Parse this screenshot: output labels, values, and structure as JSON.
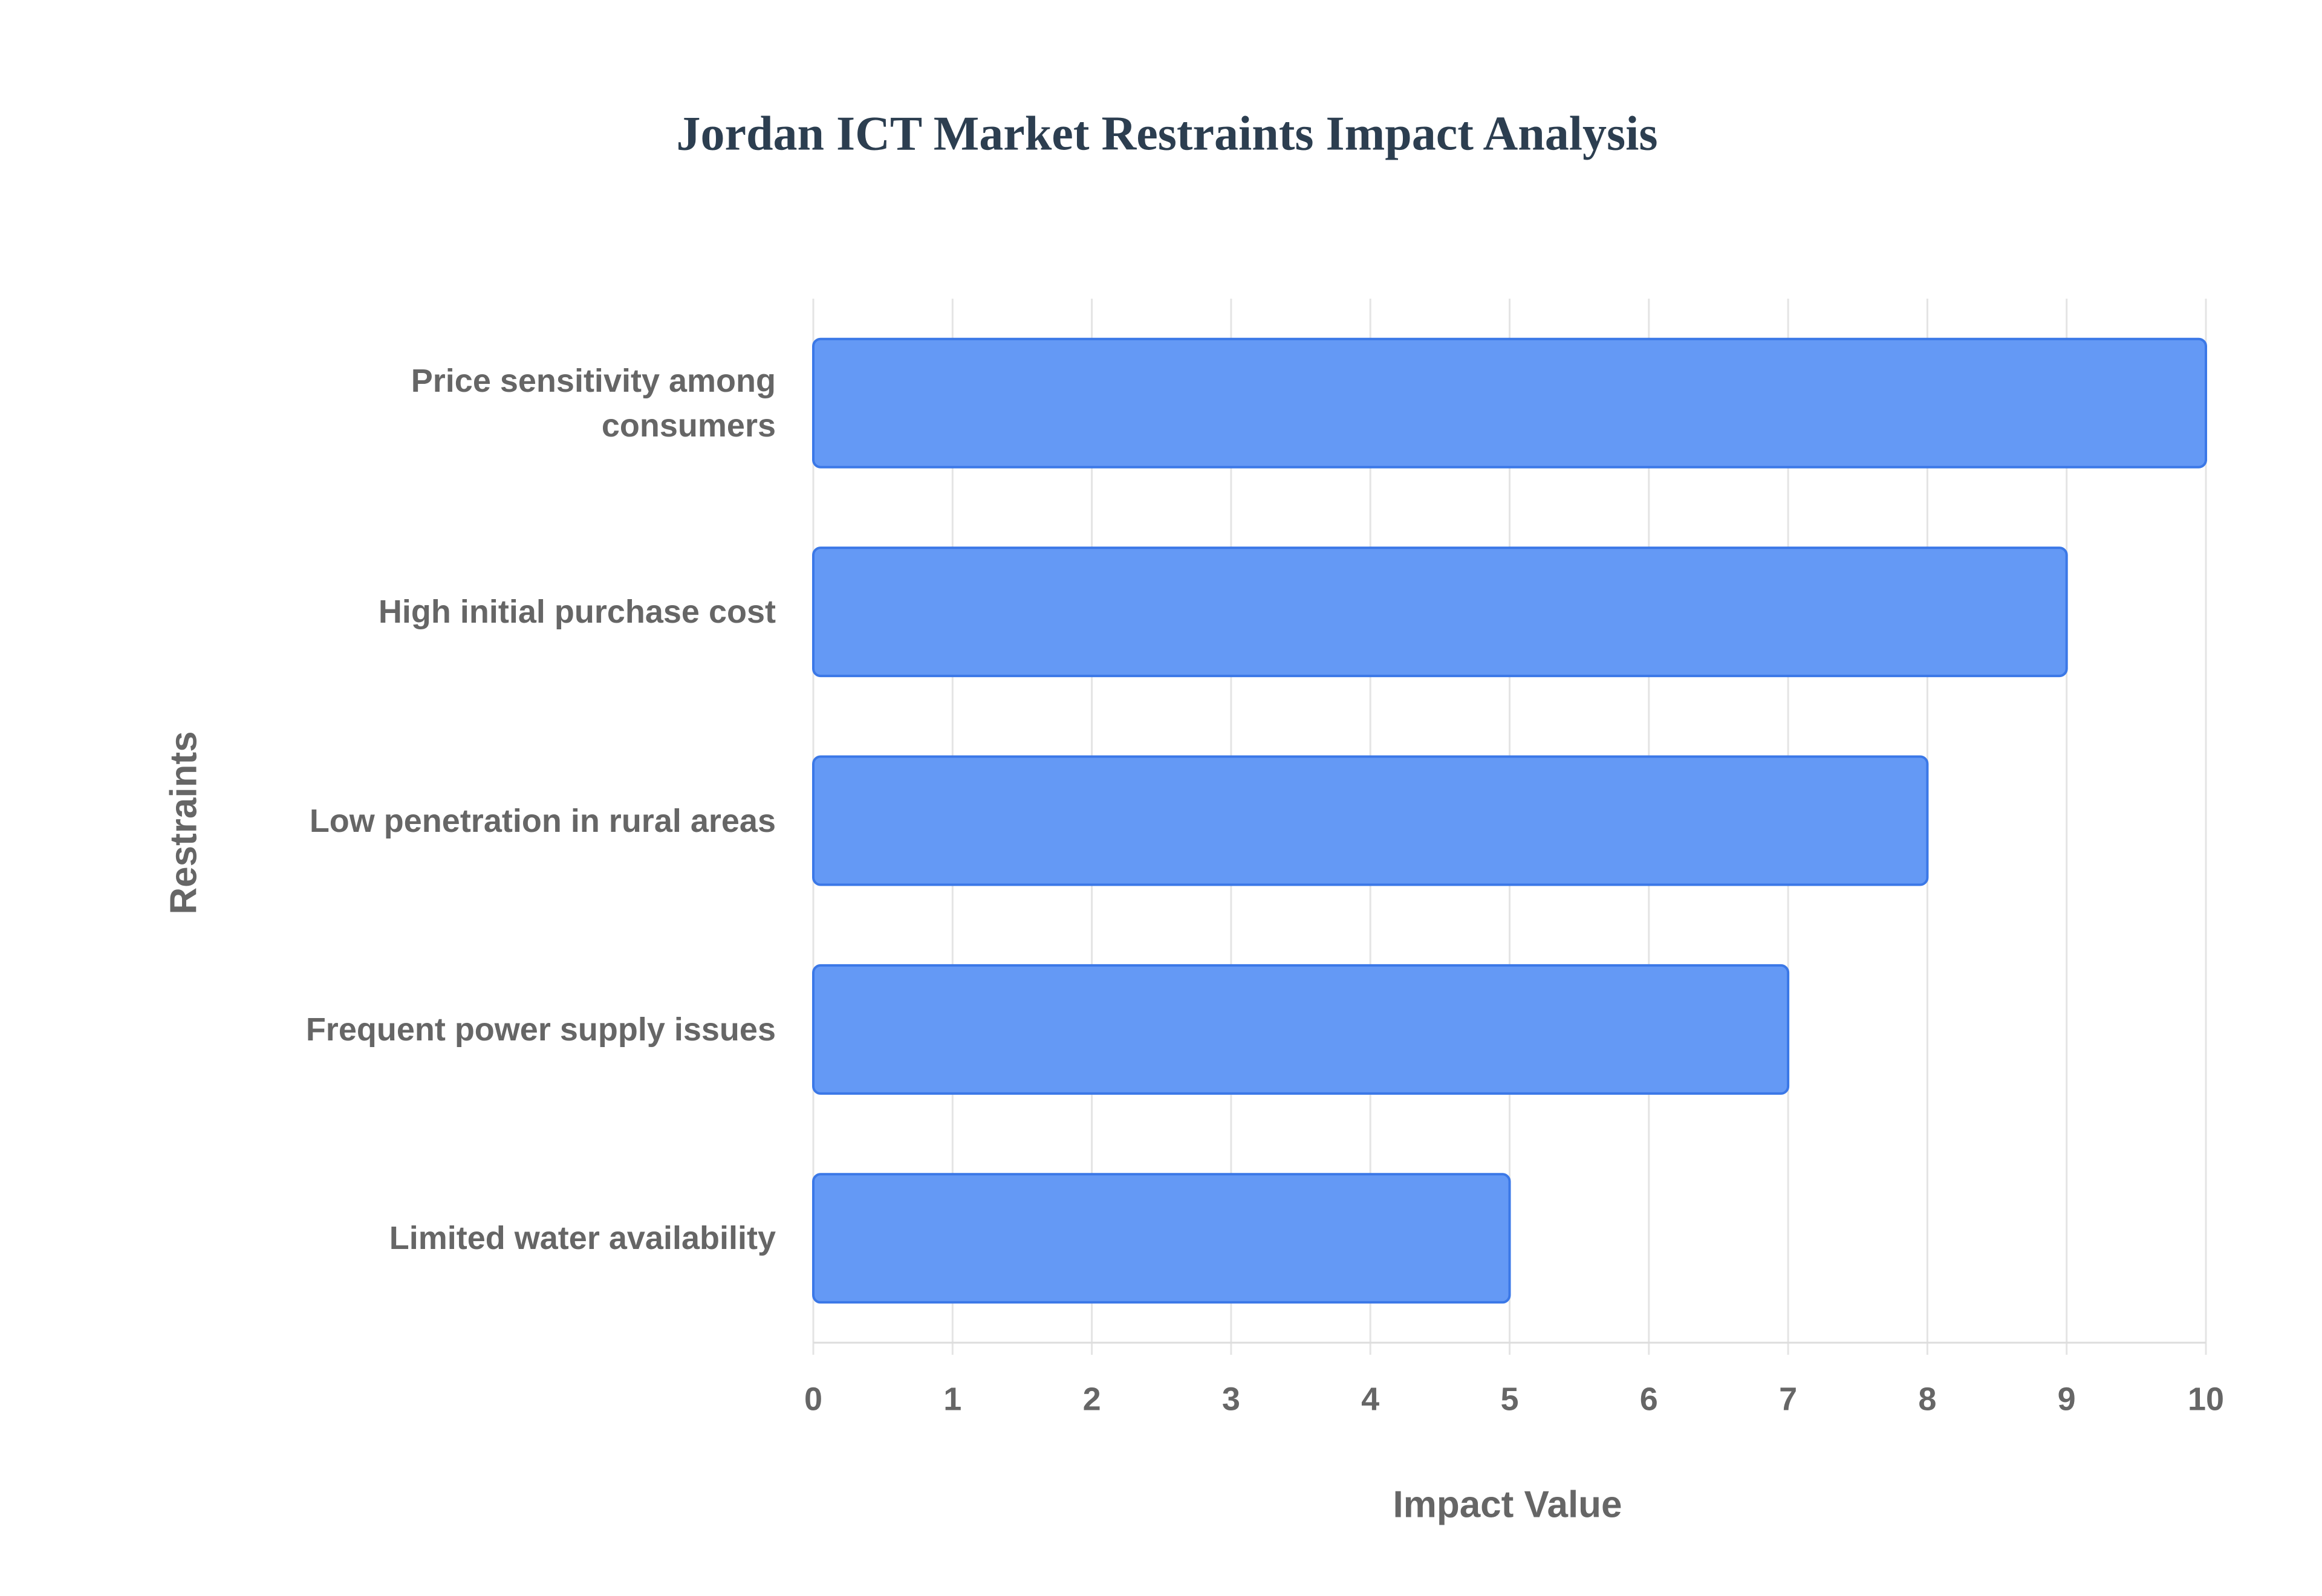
{
  "chart_data": {
    "type": "bar",
    "orientation": "horizontal",
    "title": "Jordan ICT Market Restraints Impact Analysis",
    "x_label": "Impact Value",
    "y_label": "Restraints",
    "categories": [
      "Price sensitivity among consumers",
      "High initial purchase cost",
      "Low penetration in rural areas",
      "Frequent power supply issues",
      "Limited water availability"
    ],
    "values": [
      10,
      9,
      8,
      7,
      5
    ],
    "color": "#6499f5",
    "border_color": "#3b78e7",
    "xlim": [
      0,
      10
    ],
    "xticks": [
      0,
      1,
      2,
      3,
      4,
      5,
      6,
      7,
      8,
      9,
      10
    ],
    "grid": true
  }
}
